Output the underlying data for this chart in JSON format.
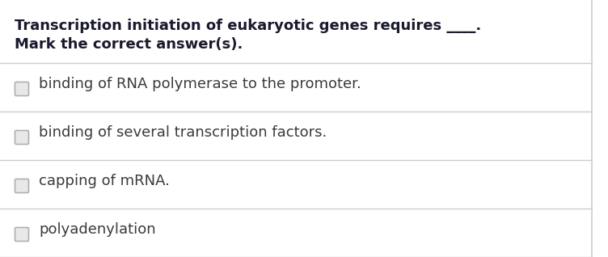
{
  "title_line1": "Transcription initiation of eukaryotic genes requires ____.",
  "title_line2": "Mark the correct answer(s).",
  "options": [
    "binding of RNA polymerase to the promoter.",
    "binding of several transcription factors.",
    "capping of mRNA.",
    "polyadenylation"
  ],
  "bg_color": "#ffffff",
  "text_color": "#2d3a4a",
  "line_color": "#cccccc",
  "checkbox_edge_color": "#b0b0b0",
  "checkbox_fill": "#e8e8e8",
  "title_fontsize": 13.0,
  "option_fontsize": 13.0,
  "right_border_color": "#cccccc",
  "title_text_color": "#1a1a2e",
  "option_text_color": "#3a3a3a"
}
